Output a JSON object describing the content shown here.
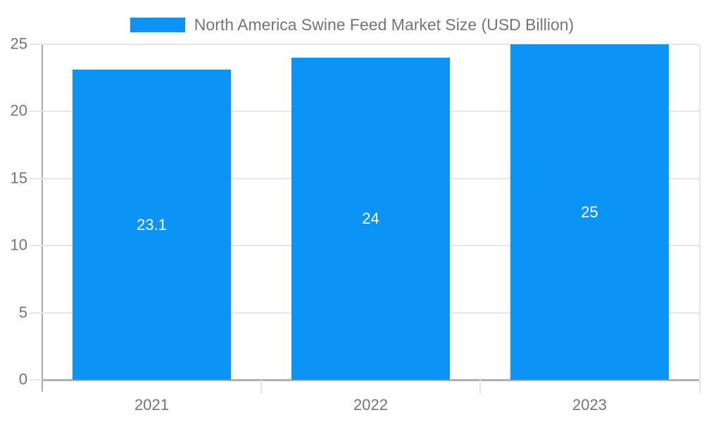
{
  "chart_data": {
    "type": "bar",
    "title": "North America Swine Feed Market Size (USD Billion)",
    "legend": {
      "position": "top",
      "label": "North America Swine Feed Market Size (USD Billion)",
      "swatch_color": "#0b93f6"
    },
    "categories": [
      "2021",
      "2022",
      "2023"
    ],
    "series": [
      {
        "name": "North America Swine Feed Market Size (USD Billion)",
        "values": [
          23.1,
          24,
          25
        ]
      }
    ],
    "values": [
      23.1,
      24,
      25
    ],
    "data_labels": [
      "23.1",
      "24",
      "25"
    ],
    "xlabel": "",
    "ylabel": "",
    "ylim": [
      0,
      25
    ],
    "yticks": [
      0,
      5,
      10,
      15,
      20,
      25
    ],
    "ytick_labels": [
      "0",
      "5",
      "10",
      "15",
      "20",
      "25"
    ],
    "grid": true,
    "colors": {
      "bar": "#0b93f6",
      "tick_text": "#757575",
      "bar_label_text": "#ffffff",
      "gridline": "#e6e6e6",
      "y_axis_line": "#ababab",
      "x_axis_line": "#b1b1b1",
      "background": "#ffffff"
    }
  }
}
